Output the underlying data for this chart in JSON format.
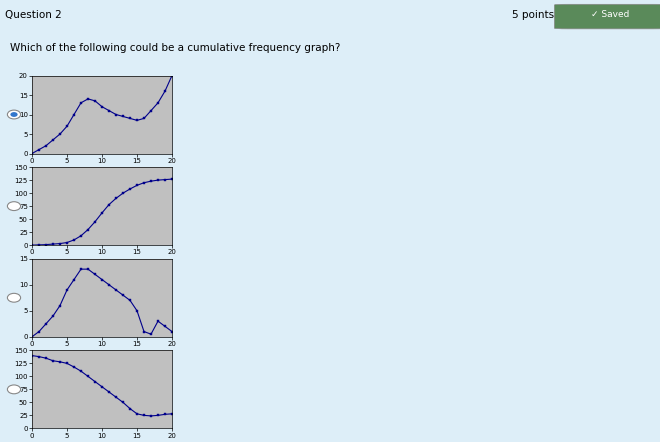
{
  "title": "Question 2",
  "points_text": "5 points",
  "saved_text": "Saved",
  "question": "Which of the following could be a cumulative frequency graph?",
  "header_bg": "#b8d4ea",
  "body_bg": "#ddeef8",
  "chart_bg": "#c0c0c0",
  "line_color": "#00008B",
  "marker_color": "#00008B",
  "chart1": {
    "x": [
      0,
      1,
      2,
      3,
      4,
      5,
      6,
      7,
      8,
      9,
      10,
      11,
      12,
      13,
      14,
      15,
      16,
      17,
      18,
      19,
      20
    ],
    "y": [
      0,
      1,
      2,
      3.5,
      5,
      7,
      10,
      13,
      14,
      13.5,
      12,
      11,
      10,
      9.5,
      9,
      8.5,
      9,
      11,
      13,
      16,
      20
    ],
    "yticks": [
      0,
      5,
      10,
      15,
      20
    ],
    "xticks": [
      0,
      5,
      10,
      15,
      20
    ],
    "ylim": [
      0,
      20
    ],
    "xlim": [
      0,
      20
    ],
    "selected": true
  },
  "chart2": {
    "x": [
      0,
      1,
      2,
      3,
      4,
      5,
      6,
      7,
      8,
      9,
      10,
      11,
      12,
      13,
      14,
      15,
      16,
      17,
      18,
      19,
      20
    ],
    "y": [
      0,
      0.5,
      1,
      2,
      3,
      5,
      10,
      18,
      30,
      45,
      62,
      78,
      90,
      100,
      108,
      115,
      120,
      123,
      125,
      126,
      127
    ],
    "yticks": [
      0,
      25,
      50,
      75,
      100,
      125,
      150
    ],
    "xticks": [
      0,
      5,
      10,
      15,
      20
    ],
    "ylim": [
      0,
      150
    ],
    "xlim": [
      0,
      20
    ],
    "selected": false
  },
  "chart3": {
    "x": [
      0,
      1,
      2,
      3,
      4,
      5,
      6,
      7,
      8,
      9,
      10,
      11,
      12,
      13,
      14,
      15,
      16,
      17,
      18,
      19,
      20
    ],
    "y": [
      0,
      1,
      2.5,
      4,
      6,
      9,
      11,
      13,
      13,
      12,
      11,
      10,
      9,
      8,
      7,
      5,
      1,
      0.5,
      3,
      2,
      1
    ],
    "yticks": [
      0,
      5,
      10,
      15
    ],
    "xticks": [
      0,
      5,
      10,
      15,
      20
    ],
    "ylim": [
      0,
      15
    ],
    "xlim": [
      0,
      20
    ],
    "selected": false
  },
  "chart4": {
    "x": [
      0,
      1,
      2,
      3,
      4,
      5,
      6,
      7,
      8,
      9,
      10,
      11,
      12,
      13,
      14,
      15,
      16,
      17,
      18,
      19,
      20
    ],
    "y": [
      140,
      138,
      135,
      130,
      128,
      125,
      118,
      110,
      100,
      90,
      80,
      70,
      60,
      50,
      38,
      28,
      25,
      24,
      25,
      27,
      28
    ],
    "yticks": [
      0,
      25,
      50,
      75,
      100,
      125,
      150
    ],
    "xticks": [
      0,
      5,
      10,
      15,
      20
    ],
    "ylim": [
      0,
      150
    ],
    "xlim": [
      0,
      20
    ],
    "selected": false
  }
}
